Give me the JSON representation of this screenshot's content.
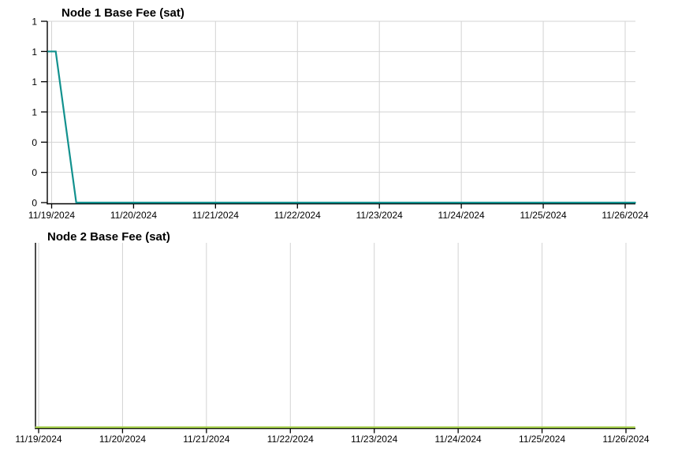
{
  "page": {
    "background_color": "#FFFFFF"
  },
  "chart_data": [
    {
      "type": "line",
      "title": "Node 1 Base Fee (sat)",
      "xlabel": "",
      "ylabel": "",
      "x_tick_labels": [
        "11/19/2024",
        "11/20/2024",
        "11/21/2024",
        "11/22/2024",
        "11/23/2024",
        "11/24/2024",
        "11/25/2024",
        "11/26/2024"
      ],
      "y_tick_labels": [
        "1",
        "1",
        "1",
        "1",
        "0",
        "0",
        "0"
      ],
      "ylim": [
        0,
        1.2
      ],
      "grid": "horizontal-and-vertical",
      "legend": false,
      "colors": {
        "line": "#12918E",
        "grid": "#D3D3D3",
        "axis": "#000000",
        "text": "#000000"
      },
      "series": [
        {
          "name": "Node 1 base fee",
          "color": "#12918E",
          "x_unit": "days since 11/19/2024",
          "points": [
            [
              -0.05,
              1
            ],
            [
              0.05,
              1
            ],
            [
              0.3,
              0
            ],
            [
              7.13,
              0
            ]
          ],
          "description": "Base fee starts at 1 sat, drops to 0 early on 11/19/2024 and stays at 0 through 11/26/2024"
        }
      ]
    },
    {
      "type": "line",
      "title": "Node 2 Base Fee (sat)",
      "xlabel": "",
      "ylabel": "",
      "x_tick_labels": [
        "11/19/2024",
        "11/20/2024",
        "11/21/2024",
        "11/22/2024",
        "11/23/2024",
        "11/24/2024",
        "11/25/2024",
        "11/26/2024"
      ],
      "y_tick_labels": [],
      "ylim": [
        0,
        1
      ],
      "grid": "vertical-only",
      "legend": false,
      "colors": {
        "line": "#A3CD4A",
        "grid": "#D3D3D3",
        "axis": "#000000",
        "text": "#000000"
      },
      "series": [
        {
          "name": "Node 2 base fee",
          "color": "#A3CD4A",
          "x_unit": "days since 11/19/2024",
          "points": [
            [
              -0.04,
              0
            ],
            [
              7.11,
              0
            ]
          ],
          "description": "Base fee is 0 sat for the whole period 11/19/2024 through 11/26/2024"
        }
      ]
    }
  ]
}
